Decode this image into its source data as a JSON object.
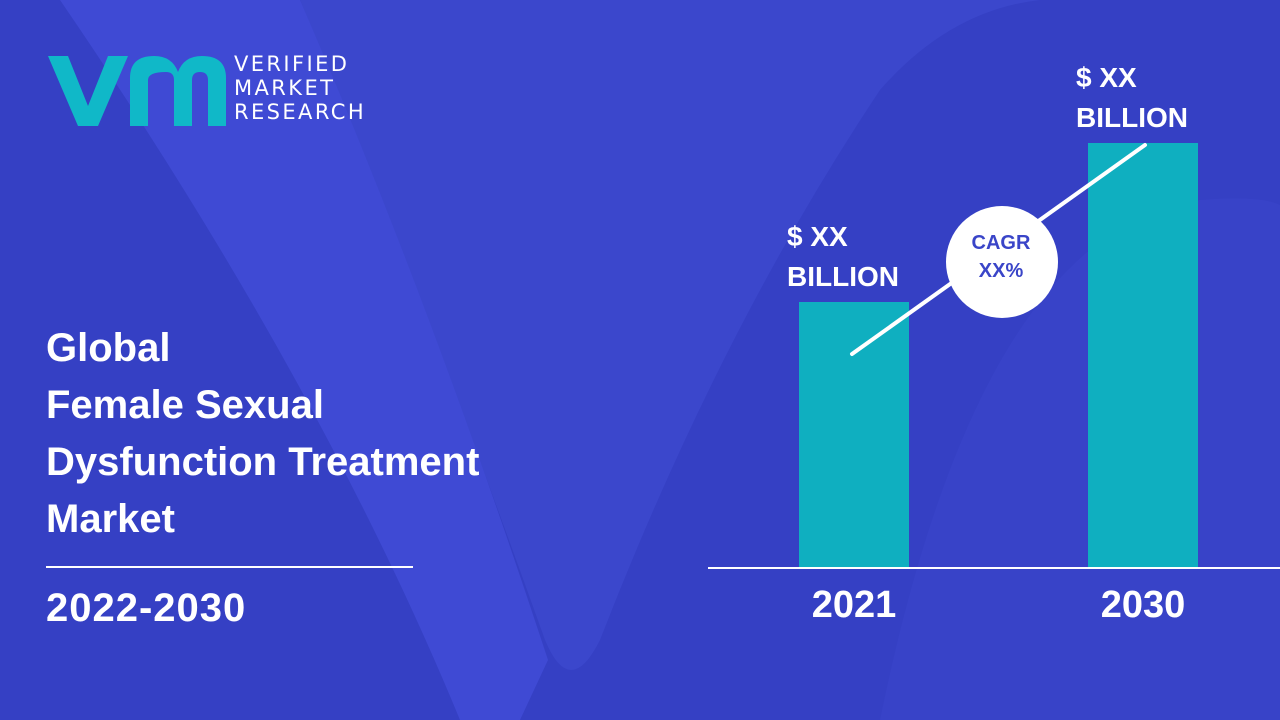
{
  "brand": {
    "line1": "VERIFIED",
    "line2": "MARKET",
    "line3": "RESEARCH",
    "color": "#10b8c8"
  },
  "title": {
    "line1": "Global",
    "line2": "Female Sexual",
    "line3": "Dysfunction Treatment",
    "line4": "Market"
  },
  "period": "2022-2030",
  "colors": {
    "background": "#3b47cc",
    "bar": "#0fafc0",
    "text": "#ffffff",
    "cagr_text": "#3a45c8"
  },
  "chart_data": {
    "type": "bar",
    "categories": [
      "2021",
      "2030"
    ],
    "values": [
      50,
      80
    ],
    "value_labels": [
      {
        "line1": "$ XX",
        "line2": "BILLION"
      },
      {
        "line1": "$ XX",
        "line2": "BILLION"
      }
    ],
    "annotation": {
      "line1": "CAGR",
      "line2": "XX%"
    },
    "ylim": [
      0,
      100
    ],
    "grid": false
  }
}
